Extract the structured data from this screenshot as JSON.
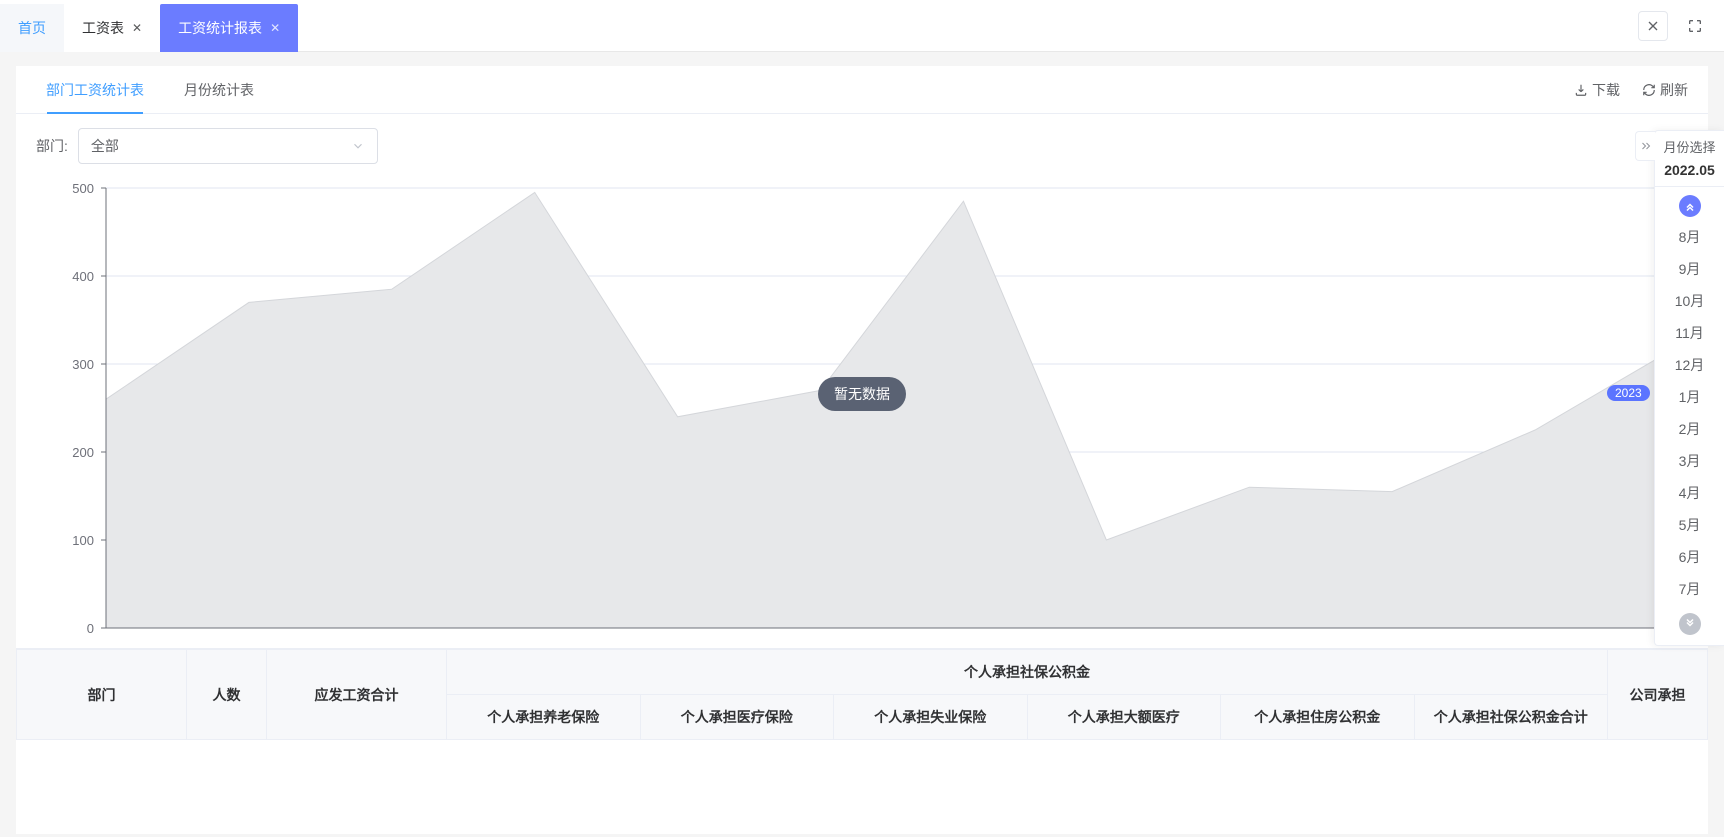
{
  "topbar": {
    "tabs": [
      {
        "label": "首页",
        "closable": false,
        "kind": "home"
      },
      {
        "label": "工资表",
        "closable": true,
        "kind": "plain"
      },
      {
        "label": "工资统计报表",
        "closable": true,
        "kind": "active"
      }
    ]
  },
  "subtabs": {
    "items": [
      {
        "label": "部门工资统计表",
        "active": true
      },
      {
        "label": "月份统计表",
        "active": false
      }
    ],
    "actions": {
      "download": "下载",
      "refresh": "刷新"
    }
  },
  "filter": {
    "label": "部门:",
    "value": "全部"
  },
  "chart": {
    "type": "area",
    "no_data_label": "暂无数据",
    "ylim": [
      0,
      500
    ],
    "ytick_step": 100,
    "yticks": [
      0,
      100,
      200,
      300,
      400,
      500
    ],
    "series": [
      260,
      370,
      385,
      495,
      240,
      270,
      485,
      100,
      160,
      155,
      225,
      320
    ],
    "fill_color": "#e7e8ea",
    "fill_opacity": 1.0,
    "line_color": "#d4d6da",
    "line_width": 1,
    "axis_color": "#6e7079",
    "tick_font_size": 13,
    "tick_color": "#6e7079",
    "grid_color": "#e0e6f1",
    "background_color": "#ffffff"
  },
  "table": {
    "group_header": "个人承担社保公积金",
    "columns_fixed": [
      "部门",
      "人数",
      "应发工资合计"
    ],
    "columns_sub": [
      "个人承担养老保险",
      "个人承担医疗保险",
      "个人承担失业保险",
      "个人承担大额医疗",
      "个人承担住房公积金",
      "个人承担社保公积金合计"
    ],
    "trailing_header": "公司承担"
  },
  "month_panel": {
    "title": "月份选择",
    "selected": "2022.05",
    "year_badge": "2023",
    "items": [
      "8月",
      "9月",
      "10月",
      "11月",
      "12月",
      "1月",
      "2月",
      "3月",
      "4月",
      "5月",
      "6月",
      "7月"
    ],
    "year_badge_index": 5
  },
  "colors": {
    "primary": "#409eff",
    "tab_active_bg": "#6b7cff"
  }
}
